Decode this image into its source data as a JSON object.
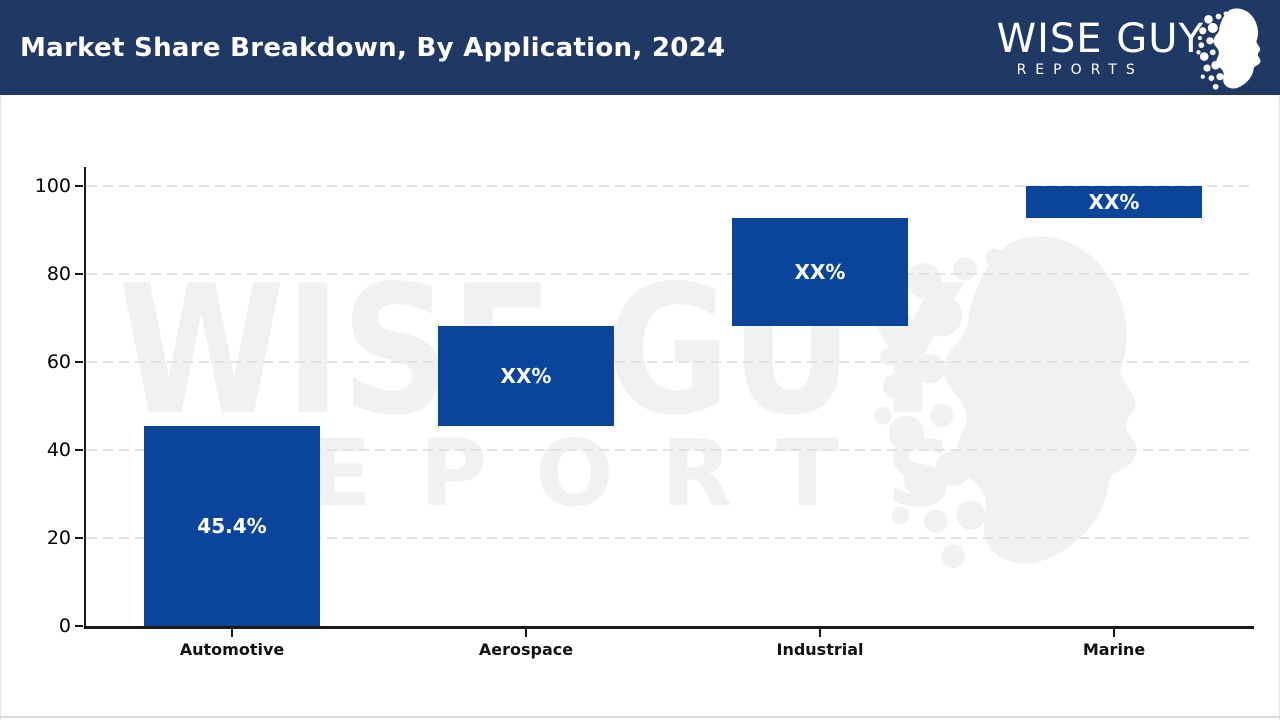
{
  "header": {
    "title": "Market Share Breakdown, By Application, 2024",
    "logo": {
      "line1": "WISE GUY",
      "line2": "REPORTS"
    }
  },
  "watermark": {
    "line1": "WISE GUY",
    "line2": "REPORTS"
  },
  "colors": {
    "header_bg": "#203864",
    "bar": "#0b459b",
    "bar_label": "#ffffff",
    "gridline": "#e2e2e2",
    "axis": "#1a1a1a",
    "watermark": "#f0f1f3"
  },
  "chart_data": {
    "type": "bar",
    "subtype": "floating-waterfall",
    "title": "Market Share Breakdown, By Application, 2024",
    "categories": [
      "Automotive",
      "Aerospace",
      "Industrial",
      "Marine"
    ],
    "segments": [
      [
        0,
        45.4
      ],
      [
        45.4,
        68.2
      ],
      [
        68.2,
        92.6
      ],
      [
        92.6,
        100
      ]
    ],
    "values": [
      45.4,
      22.8,
      24.4,
      7.4
    ],
    "bar_labels": [
      "45.4%",
      "XX%",
      "XX%",
      "XX%"
    ],
    "y_ticks": [
      0,
      20,
      40,
      60,
      80,
      100
    ],
    "ylim": [
      0,
      104
    ],
    "xlabel": "",
    "ylabel": "",
    "grid": "horizontal-dashed",
    "legend": "none"
  }
}
